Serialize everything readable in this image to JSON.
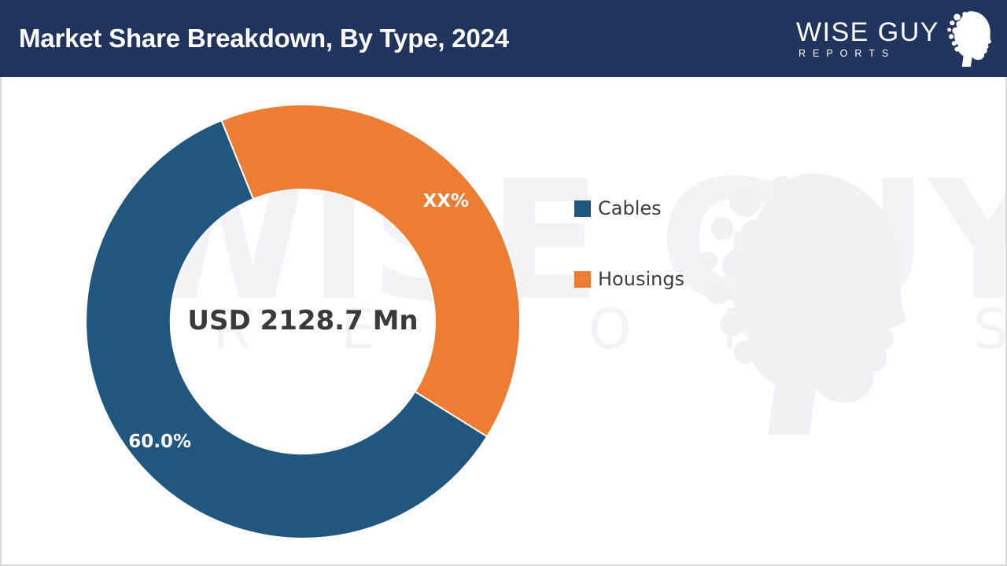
{
  "header": {
    "title": "Market Share Breakdown, By Type, 2024",
    "logo": {
      "brand_line1": "WISE GUY",
      "brand_line2": "REPORTS"
    }
  },
  "chart_data": {
    "type": "pie",
    "variant": "donut",
    "title": "Market Share Breakdown, By Type, 2024",
    "center_label": "USD 2128.7 Mn",
    "categories": [
      "Cables",
      "Housings"
    ],
    "series": [
      {
        "name": "Cables",
        "value": 60.0,
        "display_label": "60.0%",
        "color": "#21577E"
      },
      {
        "name": "Housings",
        "value": 40.0,
        "display_label": "XX%",
        "color": "#EC7D33"
      }
    ],
    "start_angle_deg": 122,
    "direction": "clockwise",
    "inner_radius_ratio": 0.609,
    "label_radius_ratio": 0.86,
    "legend_position": "right",
    "slice_label_color": "#FFFFFF"
  },
  "legend": {
    "items": [
      {
        "label": "Cables",
        "color": "#21577E"
      },
      {
        "label": "Housings",
        "color": "#EC7D33"
      }
    ]
  },
  "watermark": {
    "line1": "WISE GUY",
    "line2": "R E P O R T S"
  },
  "colors": {
    "header_bg": "#21345E",
    "canvas_border": "#D9D9D9",
    "center_text": "#3A3A3A",
    "legend_text": "#3C3C3C",
    "watermark": "#F3F3F5"
  }
}
